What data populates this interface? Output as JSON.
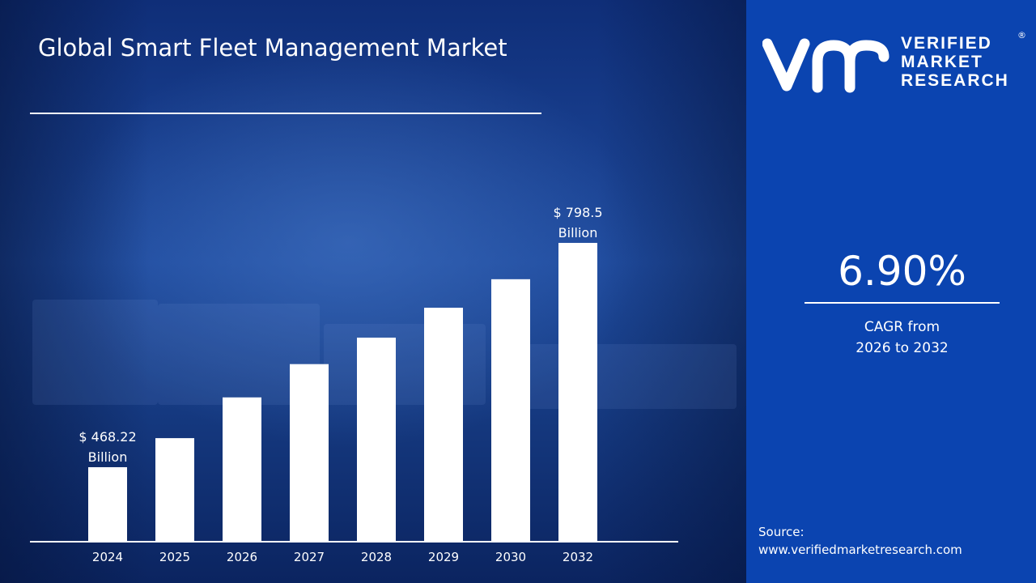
{
  "title": "Global Smart Fleet Management Market",
  "brand": {
    "line1": "VERIFIED",
    "line2": "MARKET",
    "line3": "RESEARCH",
    "registered": "®",
    "monogram": "vmr"
  },
  "cagr": {
    "value": "6.90%",
    "line1": "CAGR from",
    "line2": "2026 to 2032"
  },
  "source": {
    "label": "Source:",
    "url": "www.verifiedmarketresearch.com"
  },
  "colors": {
    "panel": "#0b44b0",
    "bars": "#ffffff",
    "background": "#1f4b9e"
  },
  "chart_data": {
    "type": "bar",
    "categories": [
      "2024",
      "2025",
      "2026",
      "2027",
      "2028",
      "2029",
      "2030",
      "2032"
    ],
    "values": [
      468.22,
      511,
      571,
      620,
      659,
      703,
      745,
      798.5
    ],
    "unit": "USD Billion",
    "data_labels": [
      {
        "category": "2024",
        "line1": "$ 468.22",
        "line2": "Billion"
      },
      {
        "category": "2032",
        "line1": "$ 798.5",
        "line2": "Billion"
      }
    ],
    "grid": false,
    "yaxis_visible": false
  }
}
